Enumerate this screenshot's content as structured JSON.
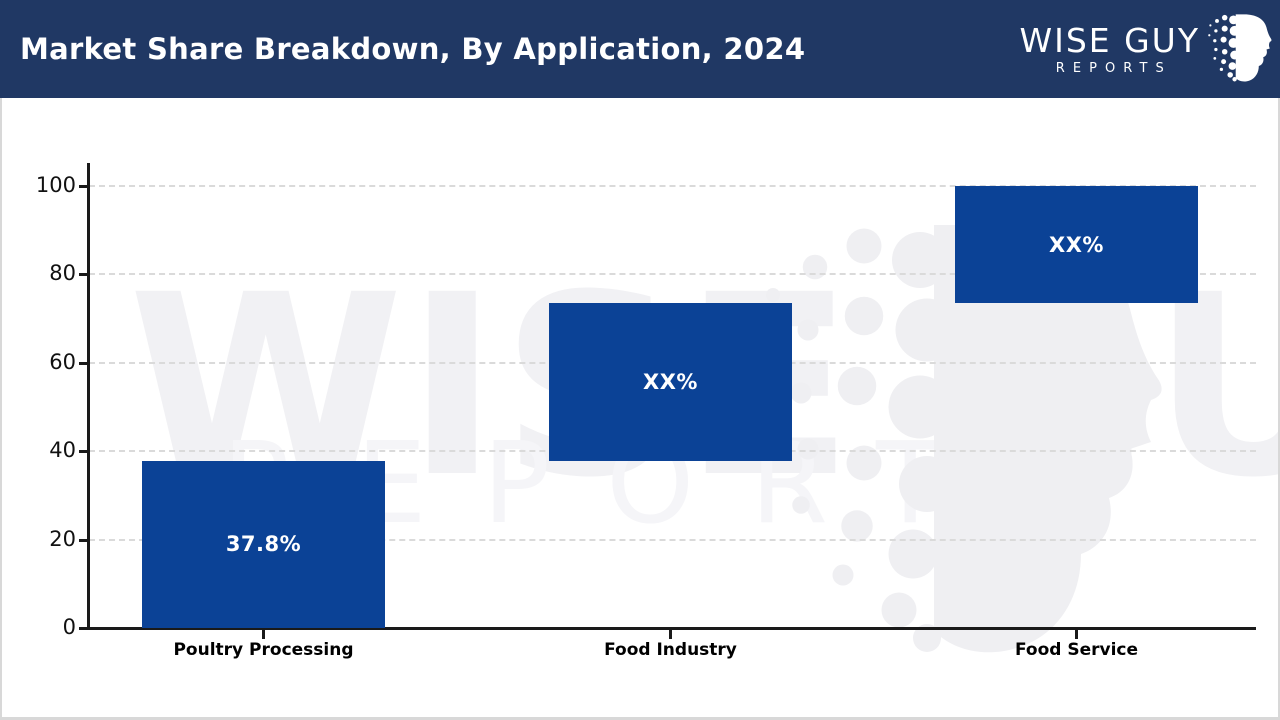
{
  "header": {
    "title": "Market Share Breakdown, By Application, 2024",
    "background_color": "#203864"
  },
  "brand": {
    "line1": "WISE GUY",
    "line2": "REPORTS"
  },
  "chart_data": {
    "type": "bar",
    "variant": "floating-segment market-share breakdown (waterfall style)",
    "title": "Market Share Breakdown, By Application, 2024",
    "categories": [
      "Poultry Processing",
      "Food Industry",
      "Food Service"
    ],
    "segments": [
      {
        "category": "Poultry Processing",
        "start": 0,
        "end": 37.8,
        "value": 37.8,
        "label": "37.8%"
      },
      {
        "category": "Food Industry",
        "start": 37.8,
        "end": 73.5,
        "value": 35.7,
        "label": "XX%"
      },
      {
        "category": "Food Service",
        "start": 73.5,
        "end": 100,
        "value": 26.5,
        "label": "XX%"
      }
    ],
    "xlabel": "",
    "ylabel": "",
    "yticks": [
      0,
      20,
      40,
      60,
      80,
      100
    ],
    "ylim": [
      0,
      105
    ],
    "grid": {
      "horizontal": true,
      "style": "dashed",
      "color": "#dadada"
    },
    "legend": "none",
    "bar_color": "#0B4296",
    "bar_label_color": "#ffffff",
    "axis_color": "#1a1a1a"
  }
}
